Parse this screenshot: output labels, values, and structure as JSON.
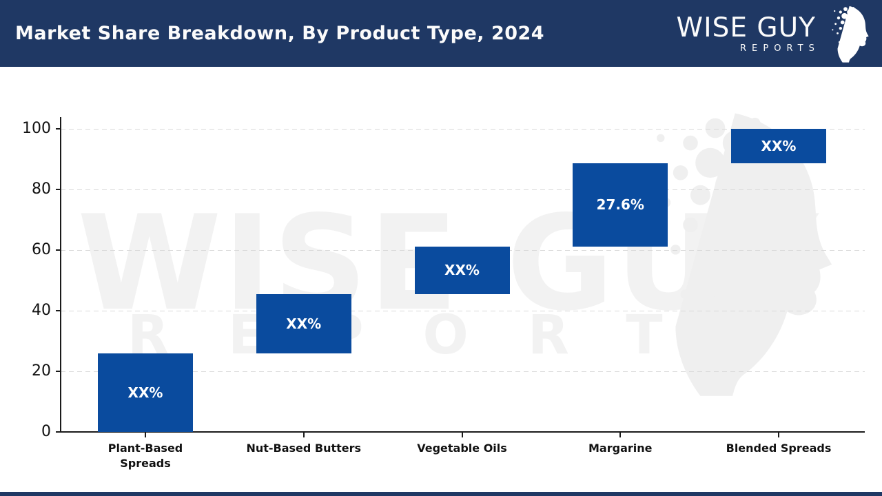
{
  "header": {
    "title": "Market Share Breakdown, By Product Type, 2024",
    "logo": {
      "line1": "WISE GUY",
      "line2": "REPORTS"
    }
  },
  "watermark": {
    "line1": "WISE GUY",
    "line2": "REPORTS"
  },
  "chart_data": {
    "type": "bar",
    "subtype": "floating-waterfall",
    "title": "Market Share Breakdown, By Product Type, 2024",
    "categories": [
      "Plant-Based\nSpreads",
      "Nut-Based Butters",
      "Vegetable Oils",
      "Margarine",
      "Blended Spreads"
    ],
    "segments": [
      {
        "category": "Plant-Based Spreads",
        "start": 0,
        "end": 25.8,
        "label": "XX%"
      },
      {
        "category": "Nut-Based Butters",
        "start": 25.8,
        "end": 45.5,
        "label": "XX%"
      },
      {
        "category": "Vegetable Oils",
        "start": 45.5,
        "end": 61.1,
        "label": "XX%"
      },
      {
        "category": "Margarine",
        "start": 61.1,
        "end": 88.7,
        "label": "27.6%"
      },
      {
        "category": "Blended Spreads",
        "start": 88.7,
        "end": 100,
        "label": "XX%"
      }
    ],
    "y_ticks": [
      0,
      20,
      40,
      60,
      80,
      100
    ],
    "ylim": [
      0,
      104
    ],
    "xlabel": "",
    "ylabel": "",
    "grid": "horizontal-dashed",
    "legend": "none"
  },
  "colors": {
    "header_bg": "#1f3864",
    "header_text": "#fbfbfb",
    "bar": "#0a4b9e",
    "bar_label": "#ffffff",
    "axis": "#1a1a1a",
    "tick_text": "#111111",
    "grid": "#d9d9d9",
    "watermark": "#f2f2f2",
    "footer_bg": "#1f3864"
  }
}
